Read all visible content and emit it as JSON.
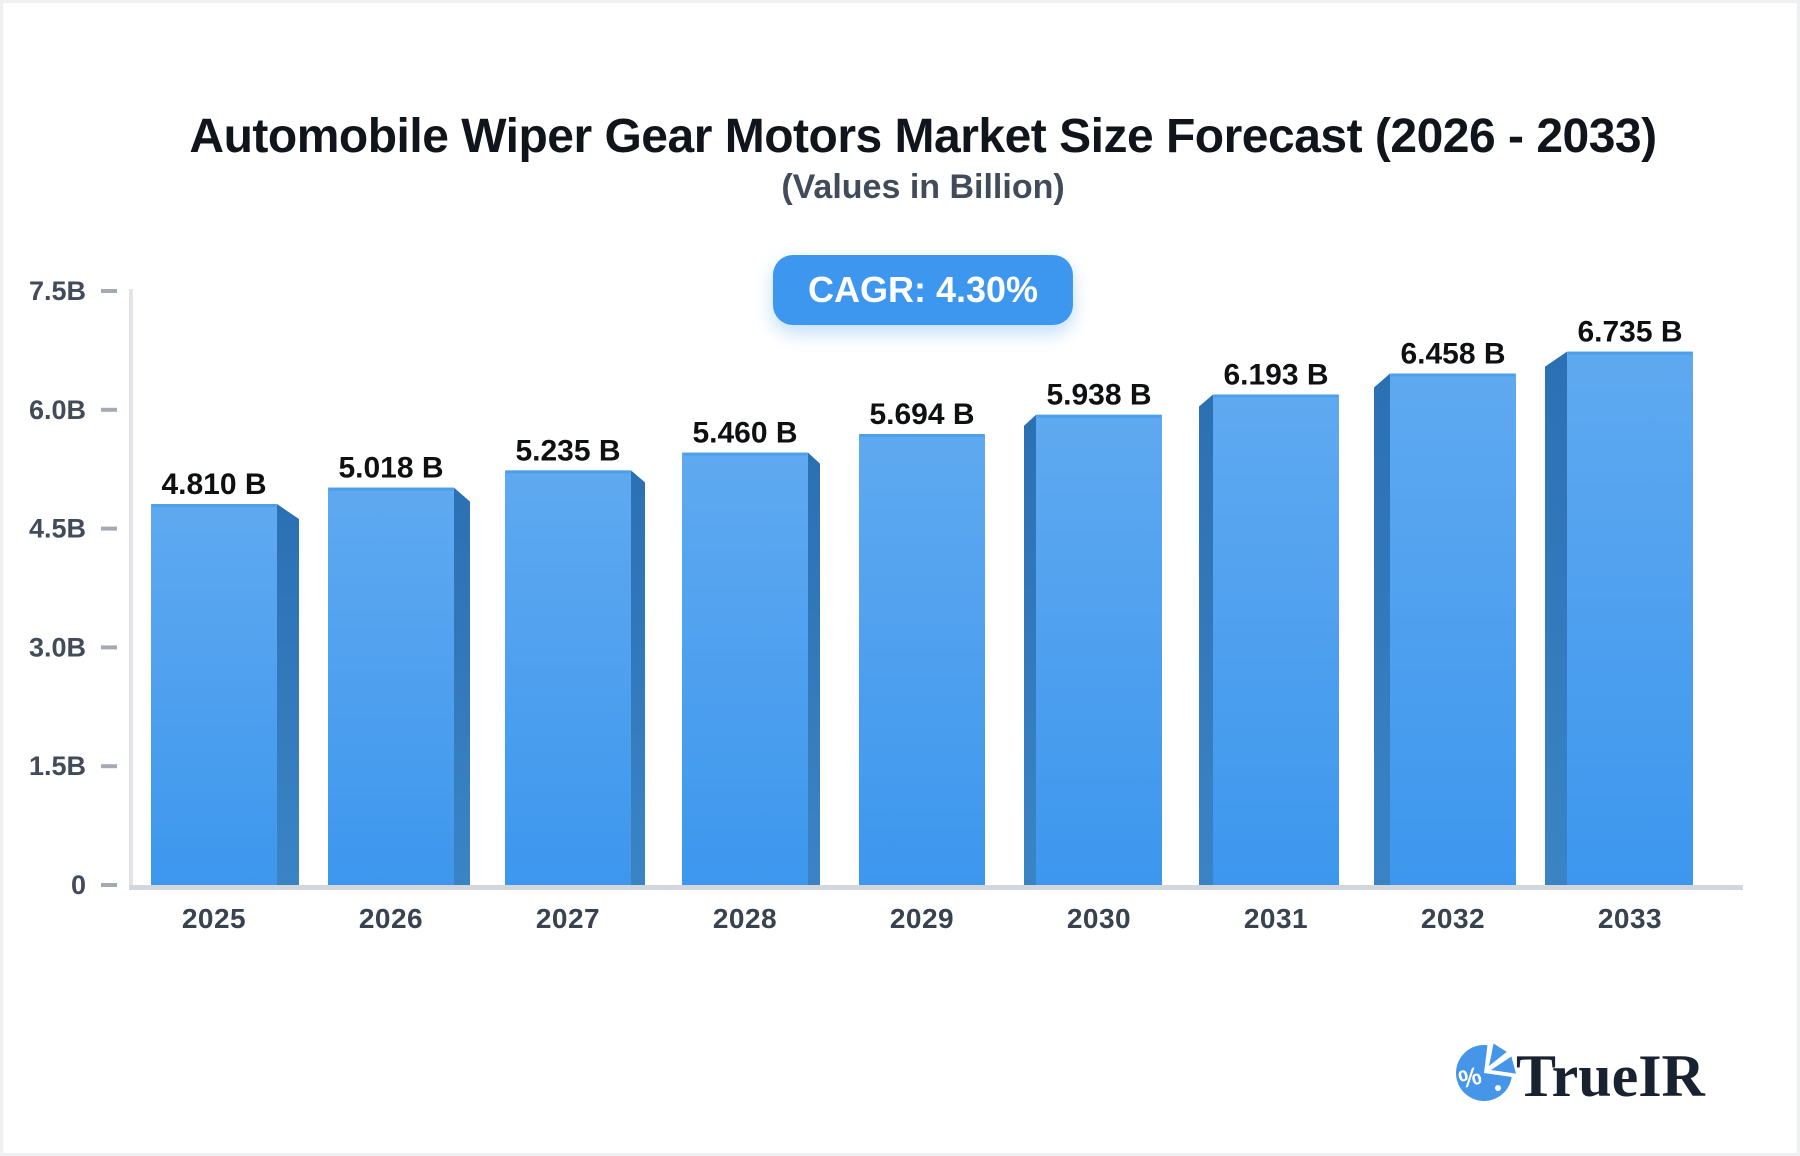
{
  "chart_data": {
    "type": "bar",
    "title": "Automobile Wiper Gear Motors Market Size Forecast (2026 - 2033)",
    "subtitle": "(Values in Billion)",
    "annotation": "CAGR: 4.30%",
    "categories": [
      "2025",
      "2026",
      "2027",
      "2028",
      "2029",
      "2030",
      "2031",
      "2032",
      "2033"
    ],
    "values": [
      4.81,
      5.018,
      5.235,
      5.46,
      5.694,
      5.938,
      6.193,
      6.458,
      6.735
    ],
    "value_labels": [
      "4.810 B",
      "5.018 B",
      "5.235 B",
      "5.460 B",
      "5.694 B",
      "5.938 B",
      "6.193 B",
      "6.458 B",
      "6.735 B"
    ],
    "ylabel": "",
    "xlabel": "",
    "ylim": [
      0,
      7.5
    ],
    "y_ticks": [
      {
        "label": "0",
        "value": 0
      },
      {
        "label": "1.5B",
        "value": 1.5
      },
      {
        "label": "3.0B",
        "value": 3.0
      },
      {
        "label": "4.5B",
        "value": 4.5
      },
      {
        "label": "6.0B",
        "value": 6.0
      },
      {
        "label": "7.5B",
        "value": 7.5
      }
    ],
    "grid": false,
    "legend": null,
    "bar_style": "3d-perspective-center-vanishing",
    "colors": {
      "bar_front_top": "#5FA9F0",
      "bar_front_bottom": "#3D97EE",
      "bar_side_top": "#2B70B2",
      "bar_side_bottom": "#3A84C6",
      "bar_top_edge": "#4E9EE8",
      "axis_line": "#E2E4E7",
      "baseline": "#D3D6DA",
      "tick": "#A5AAB2",
      "tick_label": "#414B59",
      "x_label": "#39434F",
      "value_label": "#0E1012",
      "badge_bg": "#3E97EE",
      "badge_text": "#FFFFFF",
      "title_color": "#10141B",
      "subtitle_color": "#414B59"
    }
  },
  "footer": {
    "brand": "TrueIR",
    "logo_blue": "#4596E8",
    "brand_color": "#182230"
  }
}
